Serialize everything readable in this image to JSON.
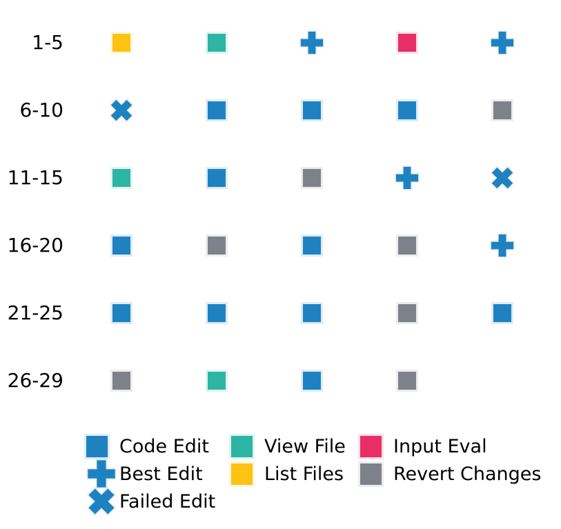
{
  "figure": {
    "background": "#ffffff"
  },
  "chart_data": {
    "type": "scatter",
    "title": "",
    "xlabel": "",
    "ylabel": "",
    "grid": false,
    "axes_visible": false,
    "legend_position": "bottom",
    "row_labels": [
      "1-5",
      "6-10",
      "11-15",
      "16-20",
      "21-25",
      "26-29"
    ],
    "columns_per_row": 5,
    "rows": [
      [
        "list_files",
        "view_file",
        "best_edit",
        "input_eval",
        "best_edit"
      ],
      [
        "failed_edit",
        "code_edit",
        "code_edit",
        "code_edit",
        "revert_changes"
      ],
      [
        "view_file",
        "code_edit",
        "revert_changes",
        "best_edit",
        "failed_edit"
      ],
      [
        "code_edit",
        "revert_changes",
        "code_edit",
        "revert_changes",
        "best_edit"
      ],
      [
        "code_edit",
        "code_edit",
        "code_edit",
        "revert_changes",
        "code_edit"
      ],
      [
        "revert_changes",
        "view_file",
        "code_edit",
        "revert_changes",
        null
      ]
    ],
    "marker_types": {
      "code_edit": {
        "label": "Code Edit",
        "shape": "square",
        "color": "#1f82c0"
      },
      "view_file": {
        "label": "View File",
        "shape": "square",
        "color": "#2cb5a4"
      },
      "input_eval": {
        "label": "Input Eval",
        "shape": "square",
        "color": "#e92d67"
      },
      "best_edit": {
        "label": "Best Edit",
        "shape": "plus",
        "color": "#1f82c0"
      },
      "list_files": {
        "label": "List Files",
        "shape": "square",
        "color": "#fcc313"
      },
      "revert_changes": {
        "label": "Revert Changes",
        "shape": "square",
        "color": "#7d828a"
      },
      "failed_edit": {
        "label": "Failed Edit",
        "shape": "x",
        "color": "#1f82c0"
      }
    },
    "legend_columns": [
      [
        "code_edit",
        "best_edit",
        "failed_edit"
      ],
      [
        "view_file",
        "list_files"
      ],
      [
        "input_eval",
        "revert_changes"
      ]
    ]
  }
}
